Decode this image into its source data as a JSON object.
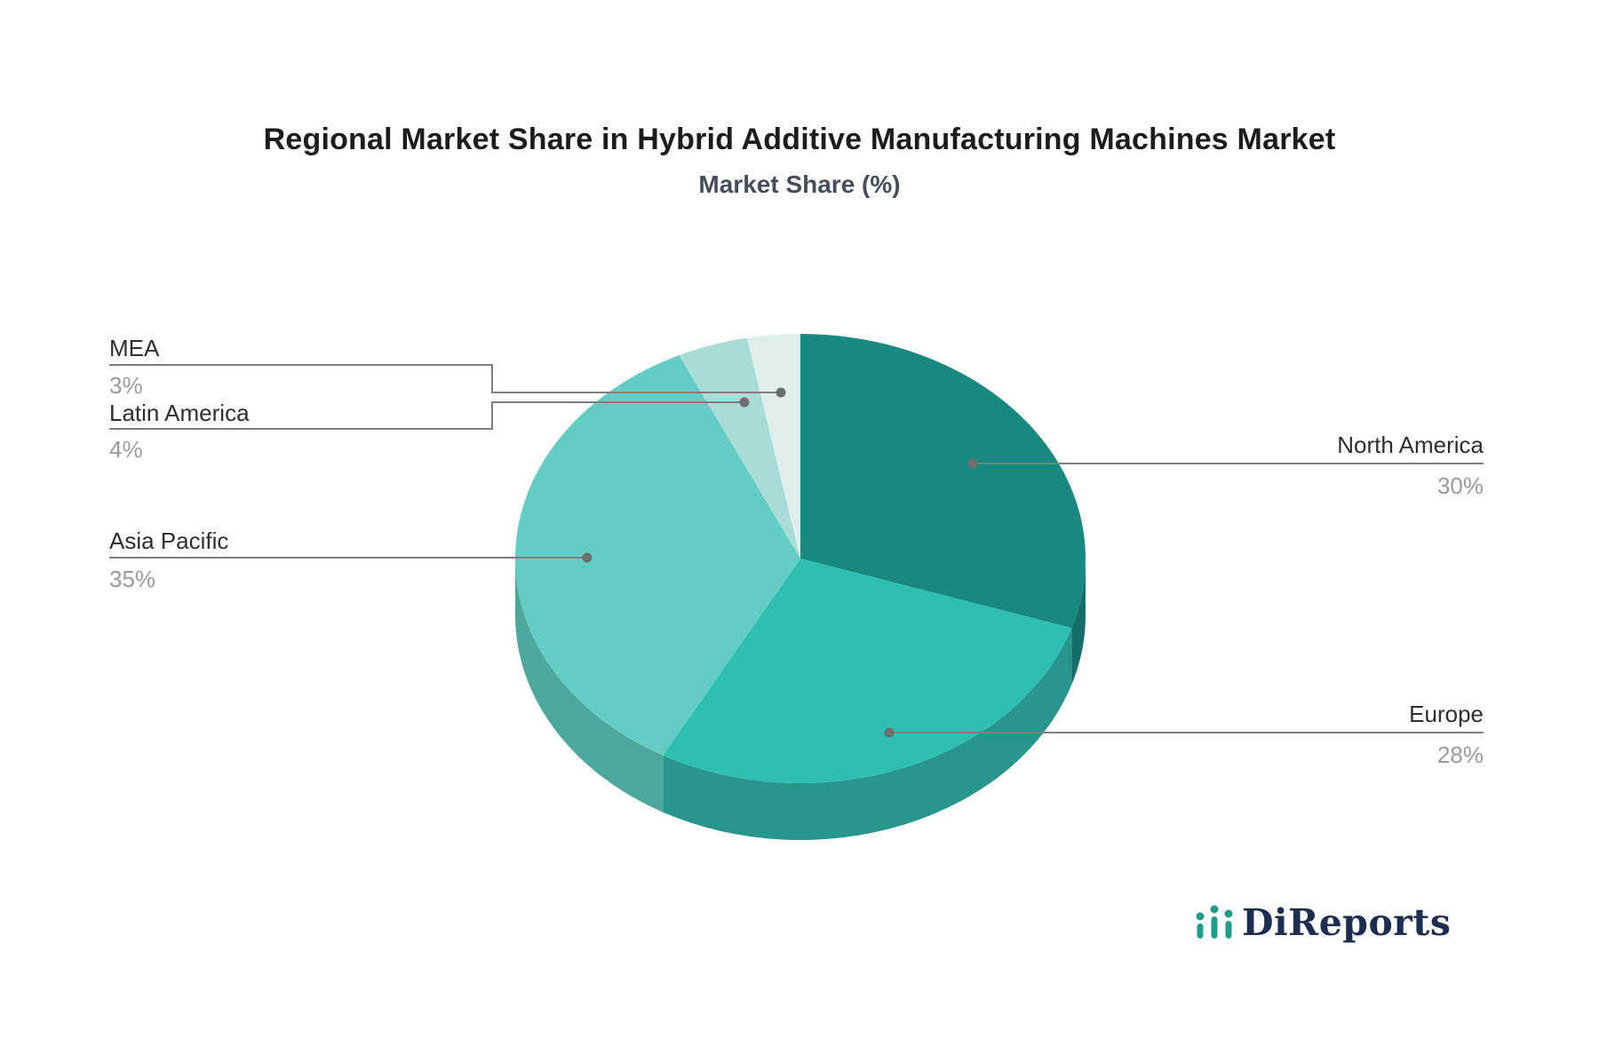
{
  "title": "Regional Market Share in Hybrid Additive Manufacturing Machines Market",
  "subtitle": "Market Share (%)",
  "logo": {
    "text": "DiReports",
    "icon": "bar-chart-icon"
  },
  "colors": {
    "title": "#1c1c1c",
    "subtitle": "#454e59",
    "label_text": "#2e2e2e",
    "percent_text": "#9a9a9a",
    "leader_line": "#7f7f7f",
    "leader_dot": "#6e6e6e",
    "logo_navy": "#1d2d50",
    "logo_teal": "#1f9d8b",
    "background": "#ffffff"
  },
  "chart_data": {
    "type": "pie",
    "style": "3d",
    "title": "Regional Market Share in Hybrid Additive Manufacturing Machines Market",
    "subtitle": "Market Share (%)",
    "units": "%",
    "start_angle_deg": 0,
    "direction": "clockwise",
    "legend": "none",
    "slices": [
      {
        "label": "North America",
        "value": 30,
        "display": "30%",
        "color": "#17897f",
        "rim_color": "#136f67",
        "label_side": "right"
      },
      {
        "label": "Europe",
        "value": 28,
        "display": "28%",
        "color": "#2ebfb2",
        "rim_color": "#28968c",
        "label_side": "right"
      },
      {
        "label": "Asia Pacific",
        "value": 35,
        "display": "35%",
        "color": "#64cdc3",
        "rim_color": "#4da79d",
        "label_side": "left"
      },
      {
        "label": "Latin America",
        "value": 4,
        "display": "4%",
        "color": "#a9dcd6",
        "rim_color": "#8ab5af",
        "label_side": "left"
      },
      {
        "label": "MEA",
        "value": 3,
        "display": "3%",
        "color": "#dfeeeb",
        "rim_color": "#c0cecb",
        "label_side": "left"
      }
    ]
  }
}
